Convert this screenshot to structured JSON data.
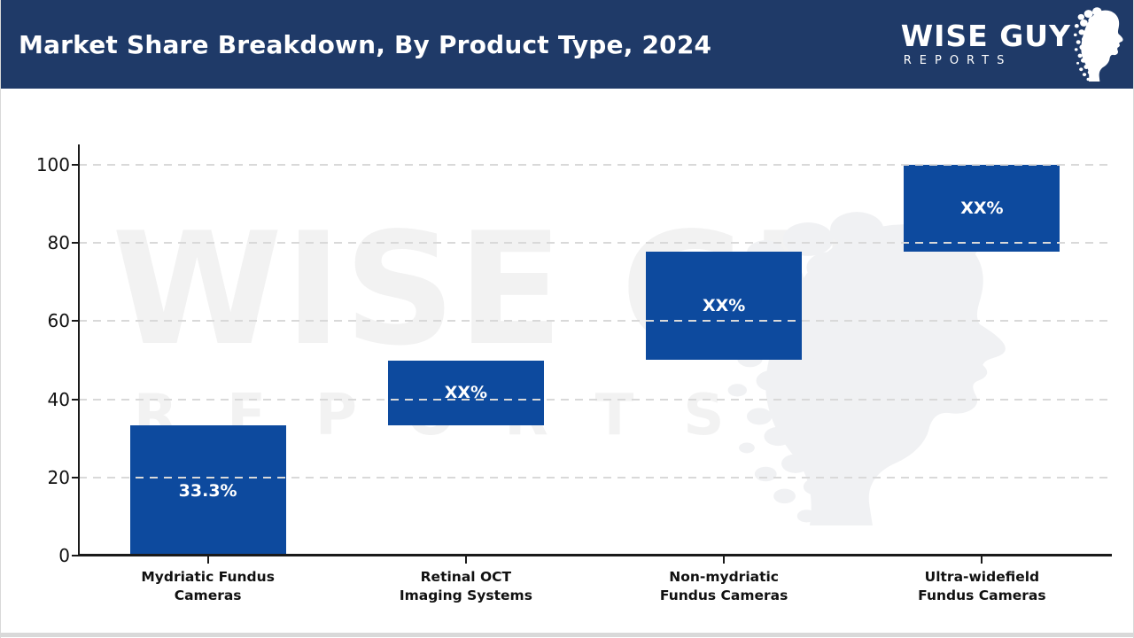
{
  "header": {
    "title": "Market Share Breakdown, By Product Type, 2024",
    "bg_color": "#1f3a68",
    "logo": {
      "line1": "WISE GUY",
      "line2": "REPORTS"
    }
  },
  "watermark": {
    "line1": "WISE GUY",
    "line2": "REPORTS"
  },
  "chart_data": {
    "type": "bar",
    "subtype": "floating-waterfall",
    "title": "Market Share Breakdown, By Product Type, 2024",
    "categories": [
      "Mydriatic Fundus\nCameras",
      "Retinal OCT\nImaging Systems",
      "Non-mydriatic\nFundus Cameras",
      "Ultra-widefield\nFundus Cameras"
    ],
    "bars": [
      {
        "label": "33.3%",
        "start": 0,
        "end": 33.3
      },
      {
        "label": "XX%",
        "start": 33.3,
        "end": 50
      },
      {
        "label": "XX%",
        "start": 50,
        "end": 77.8
      },
      {
        "label": "XX%",
        "start": 77.8,
        "end": 100
      }
    ],
    "xlabel": "",
    "ylabel": "",
    "ylim": [
      0,
      100
    ],
    "yticks": [
      0,
      20,
      40,
      60,
      80,
      100
    ],
    "grid": "horizontal-dashed",
    "legend": "none",
    "bar_color": "#0d4a9e",
    "value_label_color": "#ffffff"
  }
}
